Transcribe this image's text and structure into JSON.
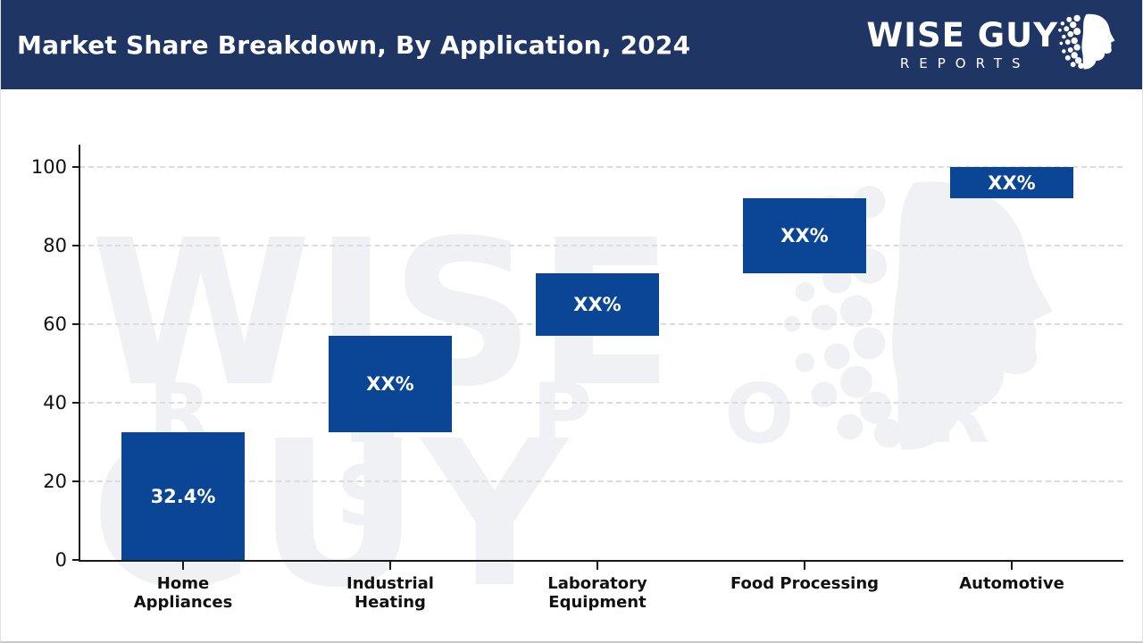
{
  "header": {
    "title": "Market Share Breakdown, By Application, 2024",
    "logo": {
      "brand_top": "WISE GUY",
      "brand_bottom": "REPORTS",
      "head_icon": "dotted-head-profile-icon"
    }
  },
  "watermark": {
    "line1": "WISE GUY",
    "line2": "R E P O R T S",
    "head_icon": "dotted-head-profile-icon"
  },
  "colors": {
    "header_bg": "#1f3664",
    "bar": "#0a4596",
    "bar_label": "#ffffff",
    "grid": "#dcdcdc",
    "axis": "#1a1a1a",
    "text": "#111111",
    "watermark": "#f0f1f4"
  },
  "chart_data": {
    "type": "bar",
    "subtype": "waterfall-floating-bars",
    "title": "Market Share Breakdown, By Application, 2024",
    "xlabel": "",
    "ylabel": "",
    "categories": [
      "Home Appliances",
      "Industrial Heating",
      "Laboratory Equipment",
      "Food Processing",
      "Automotive"
    ],
    "segments": [
      {
        "category": "Home Appliances",
        "start": 0,
        "end": 32.4,
        "label": "32.4%"
      },
      {
        "category": "Industrial Heating",
        "start": 32.4,
        "end": 57,
        "label": "XX%"
      },
      {
        "category": "Laboratory Equipment",
        "start": 57,
        "end": 73,
        "label": "XX%"
      },
      {
        "category": "Food Processing",
        "start": 73,
        "end": 92,
        "label": "XX%"
      },
      {
        "category": "Automotive",
        "start": 92,
        "end": 100,
        "label": "XX%"
      }
    ],
    "yticks": [
      0,
      20,
      40,
      60,
      80,
      100
    ],
    "ylim": [
      0,
      105
    ],
    "grid": "horizontal-dashed",
    "legend": "none",
    "bar_color": "#0a4596",
    "value_labels_inside_bars": true
  }
}
